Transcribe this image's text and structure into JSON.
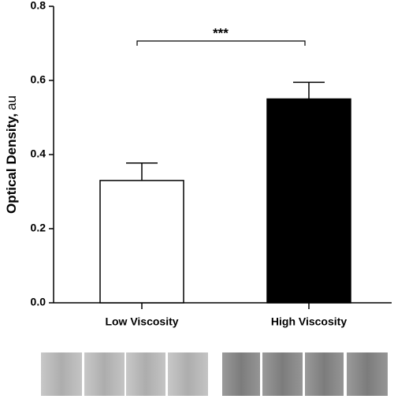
{
  "chart_data": {
    "type": "bar",
    "ylabel": "Optical Density,",
    "ylabel_unit": "au",
    "categories": [
      "Low Viscosity",
      "High Viscosity"
    ],
    "values": [
      0.33,
      0.55
    ],
    "errors": [
      0.047,
      0.045
    ],
    "colors": [
      "#ffffff",
      "#000000"
    ],
    "ylim": [
      0,
      0.8
    ],
    "yticks": [
      {
        "value": 0,
        "label": "0.0"
      },
      0.2,
      0.4,
      0.6,
      0.8
    ],
    "annotation": "***"
  }
}
